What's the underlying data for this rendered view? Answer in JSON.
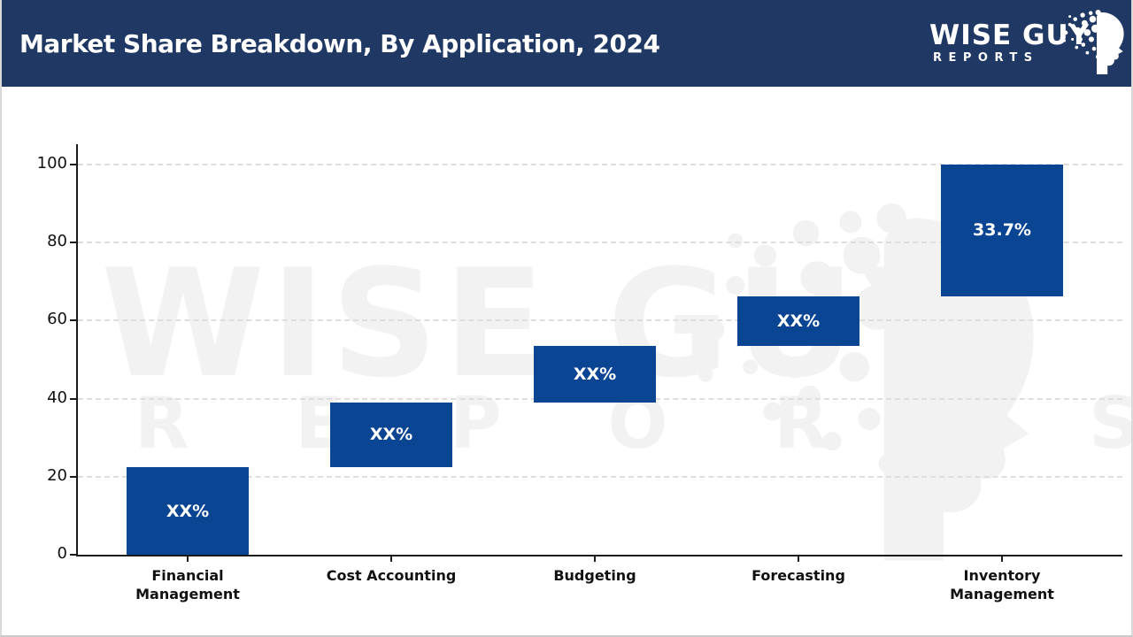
{
  "header": {
    "title": "Market Share Breakdown, By Application, 2024",
    "bg_color": "#1f3864",
    "logo": {
      "line1": "WISE GUY",
      "line2": "REPORTS"
    }
  },
  "chart_data": {
    "type": "bar",
    "subtype": "waterfall",
    "title": "Market Share Breakdown, By Application, 2024",
    "categories": [
      [
        "Financial",
        "Management"
      ],
      [
        "Cost Accounting"
      ],
      [
        "Budgeting"
      ],
      [
        "Forecasting"
      ],
      [
        "Inventory",
        "Management"
      ]
    ],
    "series": [
      {
        "name": "Market Share (%)",
        "segment_values": [
          22.4,
          16.7,
          14.4,
          12.8,
          33.7
        ],
        "cumulative_ranges": [
          [
            0,
            22.4
          ],
          [
            22.4,
            39.1
          ],
          [
            39.1,
            53.5
          ],
          [
            53.5,
            66.3
          ],
          [
            66.3,
            100
          ]
        ]
      }
    ],
    "bar_labels": [
      "XX%",
      "XX%",
      "XX%",
      "XX%",
      "33.7%"
    ],
    "xlabel": "",
    "ylabel": "",
    "ylim": [
      0,
      100
    ],
    "yticks": [
      0,
      20,
      40,
      60,
      80,
      100
    ],
    "grid": "horizontal-dashed",
    "legend": "none",
    "bar_color": "#0a4593",
    "grid_color": "#dedede",
    "watermark_line1": "WISE GUY",
    "watermark_line2": "R E P O R T S"
  }
}
